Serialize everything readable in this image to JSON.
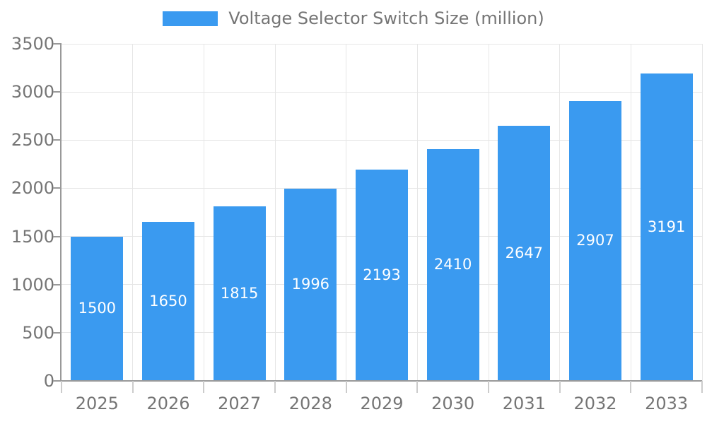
{
  "chart_data": {
    "type": "bar",
    "title": "",
    "series_name": "Voltage Selector Switch Size (million)",
    "categories": [
      "2025",
      "2026",
      "2027",
      "2028",
      "2029",
      "2030",
      "2031",
      "2032",
      "2033"
    ],
    "values": [
      1500,
      1650,
      1815,
      1996,
      2193,
      2410,
      2647,
      2907,
      3191
    ],
    "xlabel": "",
    "ylabel": "",
    "ylim": [
      0,
      3500
    ],
    "yticks": [
      0,
      500,
      1000,
      1500,
      2000,
      2500,
      3000,
      3500
    ],
    "grid": true,
    "legend_position": "top",
    "value_label_position": "inside-center"
  },
  "colors": {
    "bar": "#3A9AF0",
    "grid": "#E6E6E6",
    "axis": "#999999",
    "tick": "#CCCCCC",
    "label": "#757575",
    "value_label": "#FFFFFF",
    "background": "#FFFFFF"
  }
}
